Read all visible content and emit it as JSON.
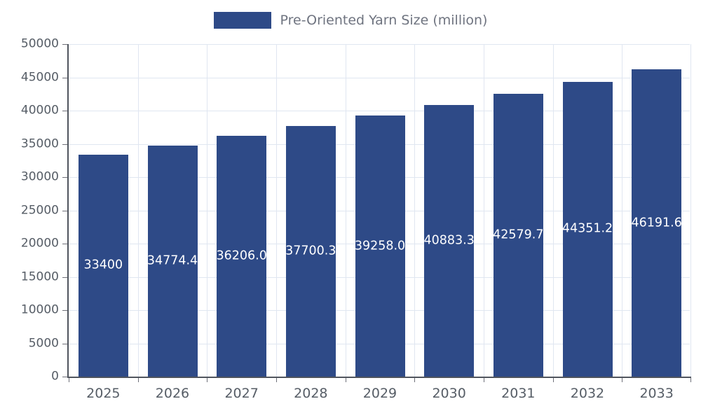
{
  "chart_data": {
    "type": "bar",
    "title": "",
    "xlabel": "",
    "ylabel": "",
    "legend": "Pre-Oriented Yarn Size (million)",
    "legend_position": "top-center",
    "grid": true,
    "categories": [
      "2025",
      "2026",
      "2027",
      "2028",
      "2029",
      "2030",
      "2031",
      "2032",
      "2033"
    ],
    "values": [
      33400,
      34774.4,
      36206.0,
      37700.3,
      39258.0,
      40883.3,
      42579.7,
      44351.2,
      46191.6
    ],
    "labels": [
      "33400",
      "34774.4",
      "36206.0",
      "37700.3",
      "39258.0",
      "40883.3",
      "42579.7",
      "44351.2",
      "46191.6"
    ],
    "ylim": [
      0,
      50000
    ],
    "ytick_step": 5000,
    "ytick_labels": [
      "0",
      "5000",
      "10000",
      "15000",
      "20000",
      "25000",
      "30000",
      "35000",
      "40000",
      "45000",
      "50000"
    ],
    "colors": {
      "bar": "#2e4a87",
      "value_label": "#ffffff",
      "grid": "#e0e6f1",
      "axis": "#50555e",
      "axis_tick": "#6e7079",
      "tick_text": "#565d66",
      "legend_text": "#6f7480",
      "background": "#ffffff"
    }
  }
}
